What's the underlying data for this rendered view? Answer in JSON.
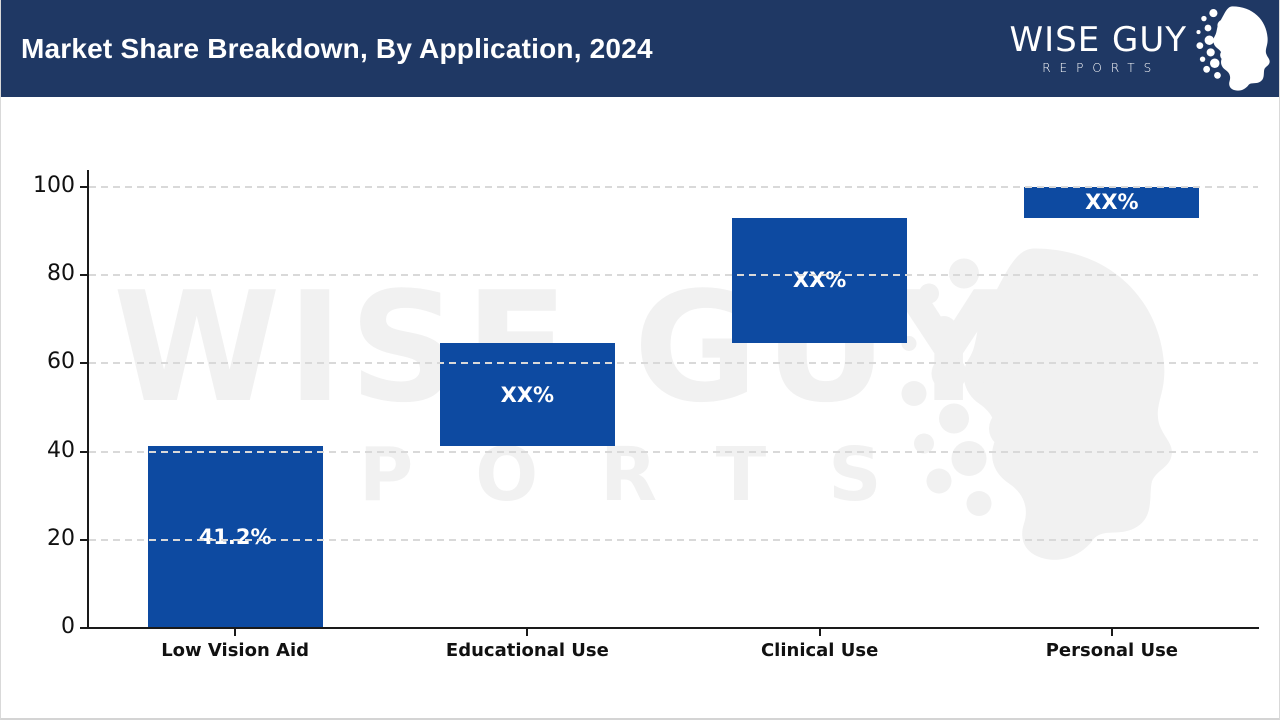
{
  "header": {
    "title": "Market Share Breakdown, By Application, 2024",
    "logo": {
      "line1": "WISE GUY",
      "line2": "REPORTS"
    }
  },
  "watermark": {
    "line1": "WISE GUY",
    "line2": "PORTS"
  },
  "colors": {
    "header_bg": "#1F3864",
    "bar": "#0D4AA1",
    "grid": "#D9D9D9",
    "axis": "#1A1A1A",
    "bar_label": "#FFFFFF",
    "watermark": "#F1F1F1"
  },
  "chart_data": {
    "type": "bar",
    "subtype": "waterfall",
    "title": "Market Share Breakdown, By Application, 2024",
    "categories": [
      "Low Vision Aid",
      "Educational Use",
      "Clinical Use",
      "Personal Use"
    ],
    "segments": [
      {
        "category": "Low Vision Aid",
        "start": 0,
        "end": 41.2,
        "label": "41.2%"
      },
      {
        "category": "Educational Use",
        "start": 41.2,
        "end": 64.6,
        "label": "XX%"
      },
      {
        "category": "Clinical Use",
        "start": 64.6,
        "end": 93.0,
        "label": "XX%"
      },
      {
        "category": "Personal Use",
        "start": 93.0,
        "end": 100,
        "label": "XX%"
      }
    ],
    "yticks": [
      0,
      20,
      40,
      60,
      80,
      100
    ],
    "ylim": [
      0,
      104
    ],
    "xlabel": "",
    "ylabel": "",
    "grid": "dashed-horizontal-over-bars",
    "legend": "none"
  }
}
